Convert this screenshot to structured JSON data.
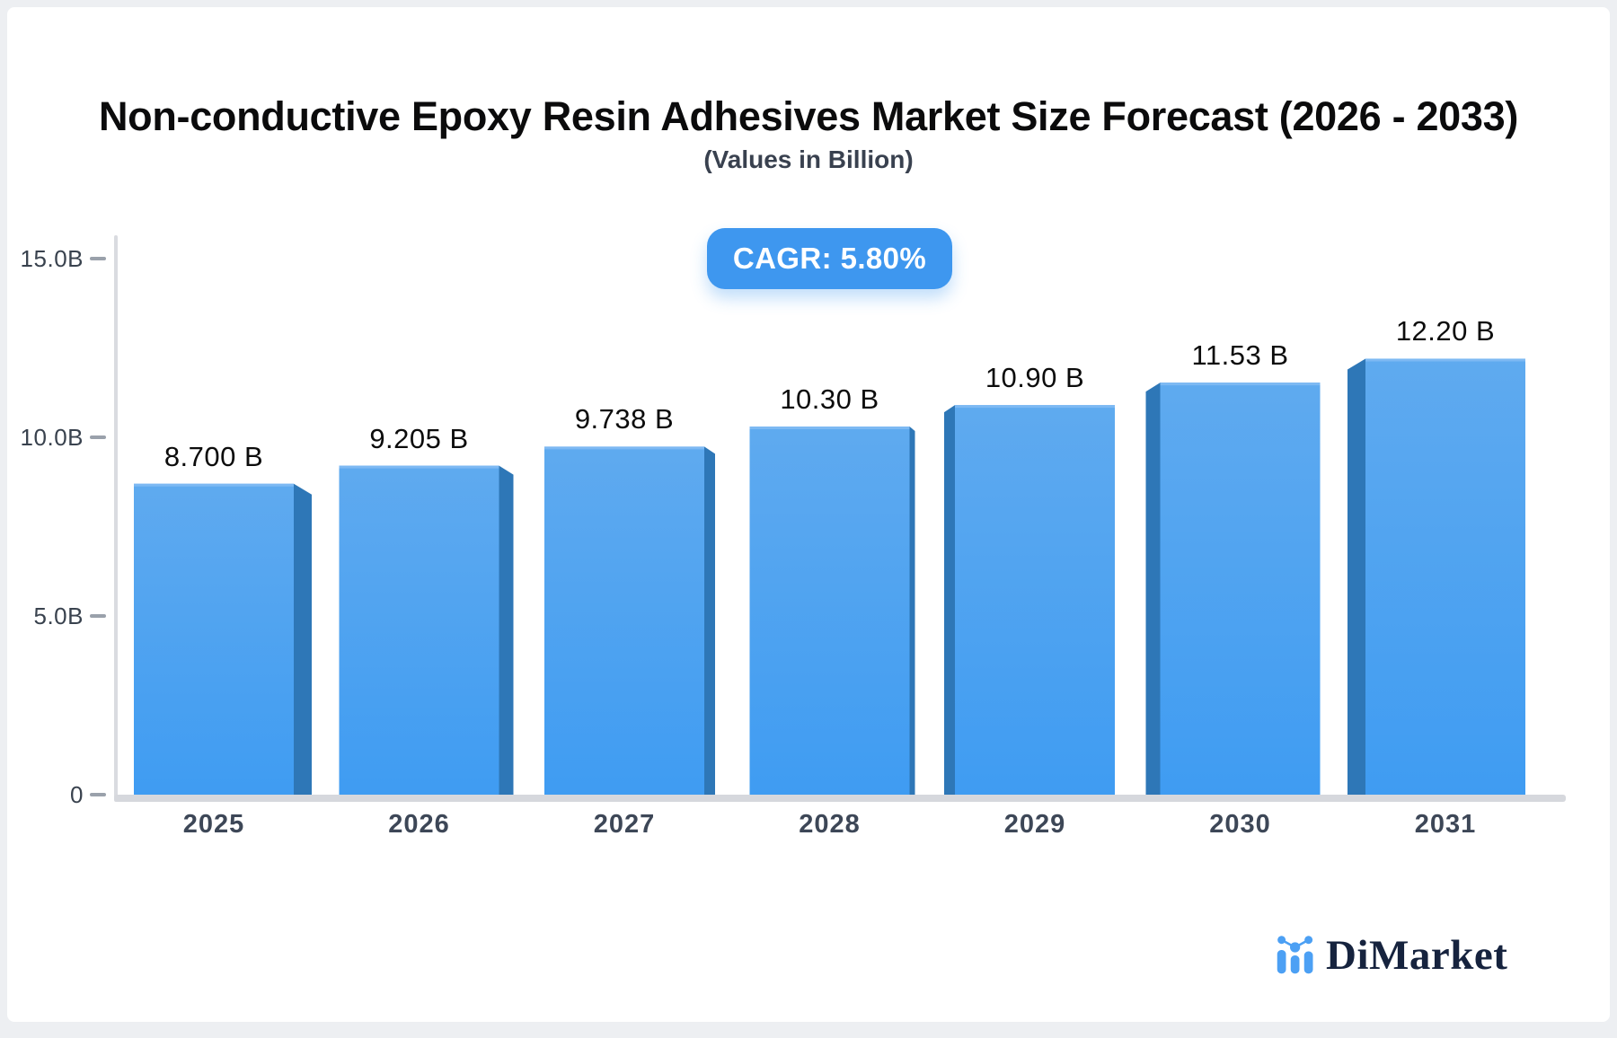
{
  "title": "Non-conductive Epoxy Resin Adhesives Market Size Forecast (2026 - 2033)",
  "subtitle": "(Values in Billion)",
  "badge": {
    "text": "CAGR: 5.80%"
  },
  "logo": {
    "text": "DiMarket",
    "icon": "mini-bar-chart-icon"
  },
  "colors": {
    "page_bg": "#EDEFF2",
    "card_bg": "#FFFFFF",
    "badge": "#3E97EF",
    "bar_top": "#5FAAEF",
    "bar_bottom": "#3F9CF2",
    "bar_side": "#2E77B7",
    "bar_top_edge": "#7DB9F3",
    "axis": "#D9DBE0",
    "baseline": "#D6D8DD",
    "tick": "#9AA1AB",
    "tick_label": "#39424E",
    "year_label": "#3D4757",
    "value_label": "#0C0C0C",
    "logo_text": "#16233E",
    "logo_icon": "#4CA0F4"
  },
  "chart_data": {
    "type": "bar",
    "title": "Non-conductive Epoxy Resin Adhesives Market Size Forecast (2026 - 2033)",
    "subtitle": "(Values in Billion)",
    "categories": [
      "2025",
      "2026",
      "2027",
      "2028",
      "2029",
      "2030",
      "2031"
    ],
    "values": [
      8.7,
      9.205,
      9.738,
      10.3,
      10.9,
      11.53,
      12.2
    ],
    "bar_labels": [
      "8.700 B",
      "9.205 B",
      "9.738 B",
      "10.30 B",
      "10.90 B",
      "11.53 B",
      "12.20 B"
    ],
    "y_axis": {
      "range": [
        0,
        15
      ],
      "ticks": [
        {
          "label": "15.0B",
          "value": 15
        },
        {
          "label": "10.0B",
          "value": 10
        },
        {
          "label": "5.0B",
          "value": 5
        },
        {
          "label": "0",
          "value": 0
        }
      ]
    },
    "xlabel": "",
    "ylabel": "",
    "grid": false,
    "legend": false,
    "style": "3d-extruded-blue-bars",
    "annotation": "CAGR: 5.80%"
  }
}
